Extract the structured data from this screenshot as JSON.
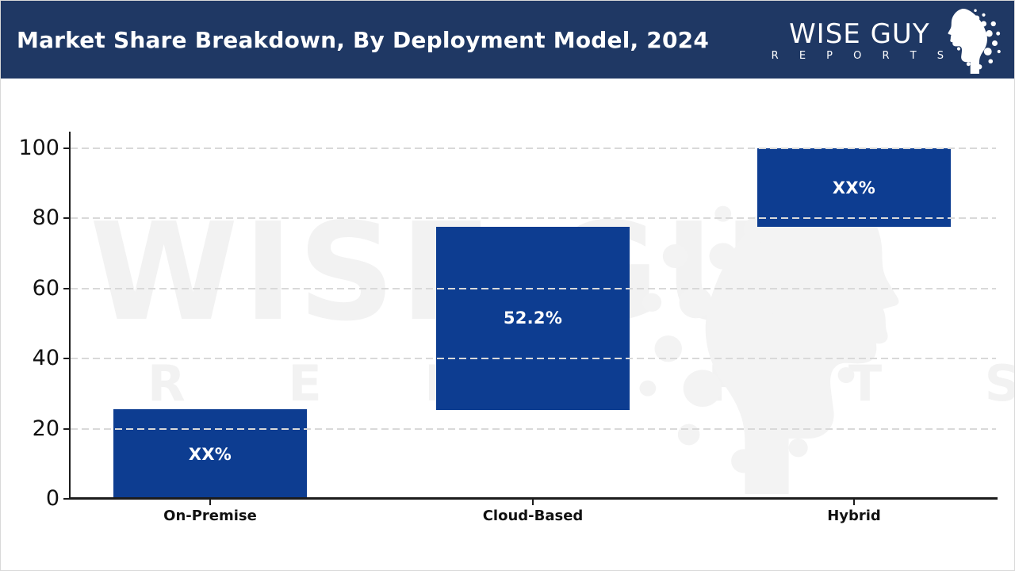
{
  "header": {
    "title": "Market Share Breakdown, By Deployment Model, 2024",
    "logo": {
      "line1": "WISE GUY",
      "line2": "R E P O R T S"
    }
  },
  "watermark": {
    "line1": "WISE GUY",
    "line2": "R E P O R T S"
  },
  "chart_data": {
    "type": "bar",
    "subtype": "waterfall",
    "title": "Market Share Breakdown, By Deployment Model, 2024",
    "categories": [
      "On-Premise",
      "Cloud-Based",
      "Hybrid"
    ],
    "segments": [
      {
        "category": "On-Premise",
        "start": 0,
        "end": 25.5,
        "label": "XX%"
      },
      {
        "category": "Cloud-Based",
        "start": 25.4,
        "end": 77.6,
        "label": "52.2%"
      },
      {
        "category": "Hybrid",
        "start": 77.6,
        "end": 100,
        "label": "XX%"
      }
    ],
    "xlabel": "",
    "ylabel": "",
    "ylim": [
      0,
      105
    ],
    "yticks": [
      0,
      20,
      40,
      60,
      80,
      100
    ],
    "grid": "horizontal-dashed-over-bars",
    "legend": "none"
  },
  "colors": {
    "header_bg": "#1f3864",
    "bar": "#0d3d91",
    "bar_label": "#ffffff",
    "grid": "#d9d9d9",
    "axis": "#1c1c1c",
    "watermark": "#f2f2f2",
    "watermark_head": "#f3f3f3",
    "page_border": "#d9d9d9"
  }
}
